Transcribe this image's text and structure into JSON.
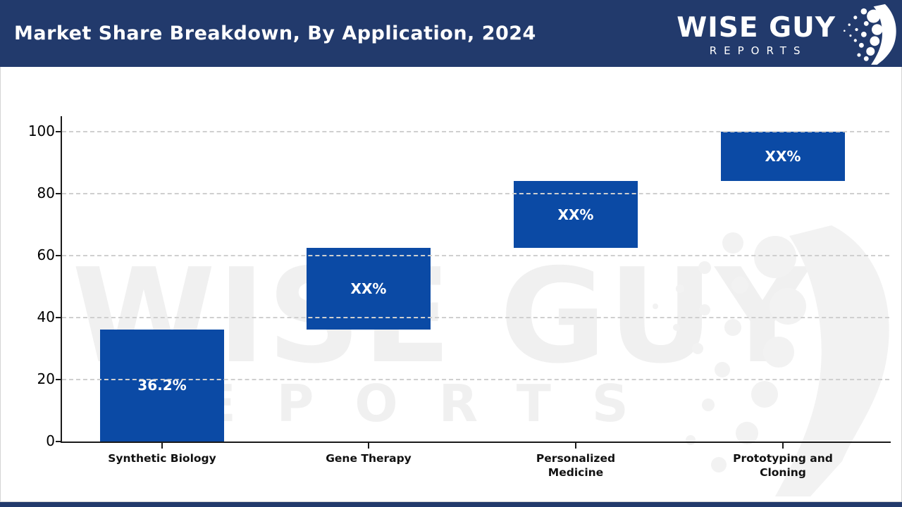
{
  "header": {
    "title": "Market Share Breakdown, By Application, 2024",
    "logo": {
      "line1": "WISE GUY",
      "line2": "REPORTS"
    }
  },
  "watermark": {
    "line1": "WISE GUY",
    "line2": "REPORTS"
  },
  "chart_data": {
    "type": "bar",
    "subtype": "waterfall",
    "title": "Market Share Breakdown, By Application, 2024",
    "categories": [
      "Synthetic Biology",
      "Gene Therapy",
      "Personalized Medicine",
      "Prototyping and Cloning"
    ],
    "segments": [
      {
        "category": "Synthetic Biology",
        "start": 0,
        "end": 36.2,
        "label": "36.2%"
      },
      {
        "category": "Gene Therapy",
        "start": 36.2,
        "end": 62.4,
        "label": "XX%"
      },
      {
        "category": "Personalized Medicine",
        "start": 62.4,
        "end": 84.0,
        "label": "XX%"
      },
      {
        "category": "Prototyping and Cloning",
        "start": 84.0,
        "end": 100,
        "label": "XX%"
      }
    ],
    "yticks": [
      0,
      20,
      40,
      60,
      80,
      100
    ],
    "ylim": [
      0,
      105
    ],
    "xlabel": "",
    "ylabel": "",
    "grid": "horizontal-dashed",
    "legend": "none",
    "bar_color": "#0b4aa5",
    "bar_label_color": "#ffffff"
  },
  "colors": {
    "header_navy": "#223a6c",
    "bar_blue": "#0b4aa5",
    "gridline": "#cfcfcf",
    "watermark": "#f0f0f0"
  }
}
